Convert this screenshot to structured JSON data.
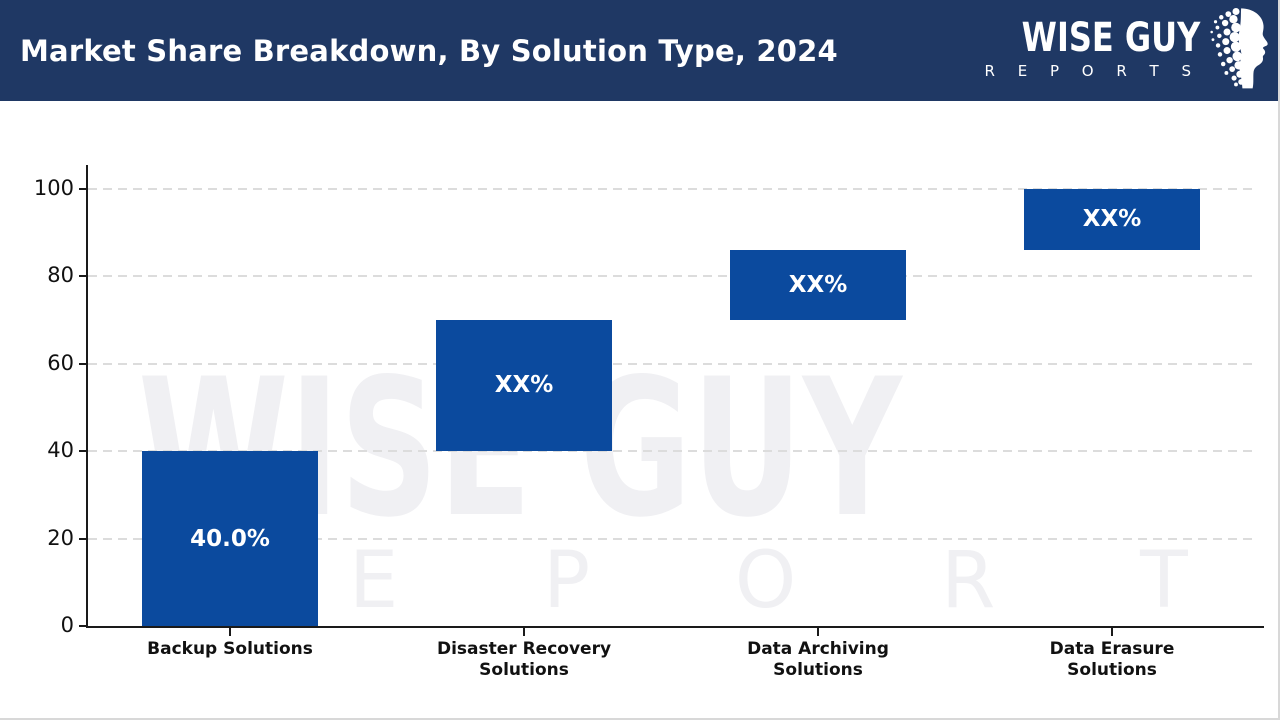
{
  "header": {
    "title": "Market Share Breakdown, By Solution Type, 2024",
    "logo": {
      "name": "WISE GUY",
      "tagline": "R E P O R T S"
    }
  },
  "watermark": {
    "name": "WISE GUY",
    "tagline": "R E P O R T S"
  },
  "chart_data": {
    "type": "bar",
    "subtype": "stepped-waterfall",
    "title": "Market Share Breakdown, By Solution Type, 2024",
    "categories": [
      "Backup Solutions",
      "Disaster Recovery Solutions",
      "Data Archiving Solutions",
      "Data Erasure Solutions"
    ],
    "segments": [
      {
        "category": "Backup Solutions",
        "start": 0,
        "end": 40,
        "label": "40.0%"
      },
      {
        "category": "Disaster Recovery Solutions",
        "start": 40,
        "end": 70,
        "label": "XX%"
      },
      {
        "category": "Data Archiving Solutions",
        "start": 70,
        "end": 86,
        "label": "XX%"
      },
      {
        "category": "Data Erasure Solutions",
        "start": 86,
        "end": 100,
        "label": "XX%"
      }
    ],
    "ylim": [
      0,
      100
    ],
    "yticks": [
      0,
      20,
      40,
      60,
      80,
      100
    ],
    "xlabel": "",
    "ylabel": "",
    "grid": "horizontal-dashed",
    "legend": "none"
  },
  "colors": {
    "header_bg": "#1f3864",
    "bar": "#0b4a9e",
    "bar_label": "#ffffff",
    "grid": "#dcdcdc",
    "axis": "#1a1a1a",
    "watermark": "#f0f0f3"
  }
}
